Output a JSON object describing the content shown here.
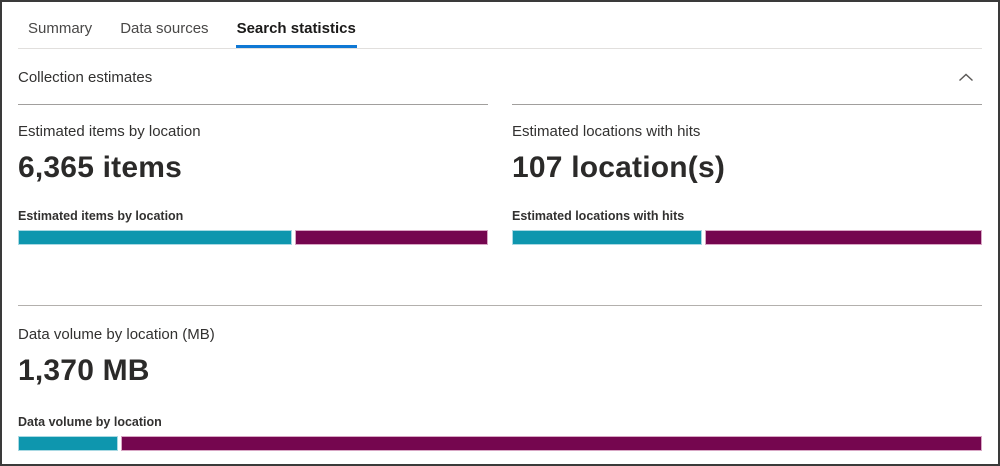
{
  "tabs": [
    {
      "label": "Summary",
      "active": false
    },
    {
      "label": "Data sources",
      "active": false
    },
    {
      "label": "Search statistics",
      "active": true
    }
  ],
  "collection": {
    "title": "Collection estimates",
    "collapse_icon": "chevron-up"
  },
  "cards": [
    {
      "header": "Estimated items by location",
      "value": "6,365 items",
      "chart_label": "Estimated items by location",
      "teal_pct": 58.2,
      "magenta_pct": 41.8
    },
    {
      "header": "Estimated locations with hits",
      "value": "107 location(s)",
      "chart_label": "Estimated locations with hits",
      "teal_pct": 40.4,
      "magenta_pct": 59.6
    }
  ],
  "volume_card": {
    "header": "Data volume by location (MB)",
    "value": "1,370 MB",
    "chart_label": "Data volume by location",
    "teal_pct": 10.4,
    "magenta_pct": 89.6
  },
  "colors": {
    "accent_tab_underline": "#0f78d4",
    "bar_teal": "#0e96ae",
    "bar_magenta": "#75064f",
    "divider_light": "#e1dfdd",
    "divider_dark": "#a19f9d",
    "text_primary": "#323130",
    "text_secondary": "#494847"
  },
  "chart_data": [
    {
      "type": "bar",
      "orientation": "horizontal",
      "stacked": true,
      "title": "Estimated items by location",
      "total_label": "6,365 items",
      "total": 6365,
      "legend": "none",
      "segments": [
        {
          "name": "teal-segment",
          "color": "#0e96ae",
          "fraction": 0.582,
          "value_est": 3700
        },
        {
          "name": "magenta-segment",
          "color": "#75064f",
          "fraction": 0.418,
          "value_est": 2665
        }
      ]
    },
    {
      "type": "bar",
      "orientation": "horizontal",
      "stacked": true,
      "title": "Estimated locations with hits",
      "total_label": "107 location(s)",
      "total": 107,
      "legend": "none",
      "segments": [
        {
          "name": "teal-segment",
          "color": "#0e96ae",
          "fraction": 0.404,
          "value_est": 43
        },
        {
          "name": "magenta-segment",
          "color": "#75064f",
          "fraction": 0.596,
          "value_est": 64
        }
      ]
    },
    {
      "type": "bar",
      "orientation": "horizontal",
      "stacked": true,
      "title": "Data volume by location",
      "total_label": "1,370 MB",
      "total": 1370,
      "legend": "none",
      "segments": [
        {
          "name": "teal-segment",
          "color": "#0e96ae",
          "fraction": 0.104,
          "value_est": 143
        },
        {
          "name": "magenta-segment",
          "color": "#75064f",
          "fraction": 0.896,
          "value_est": 1227
        }
      ]
    }
  ]
}
